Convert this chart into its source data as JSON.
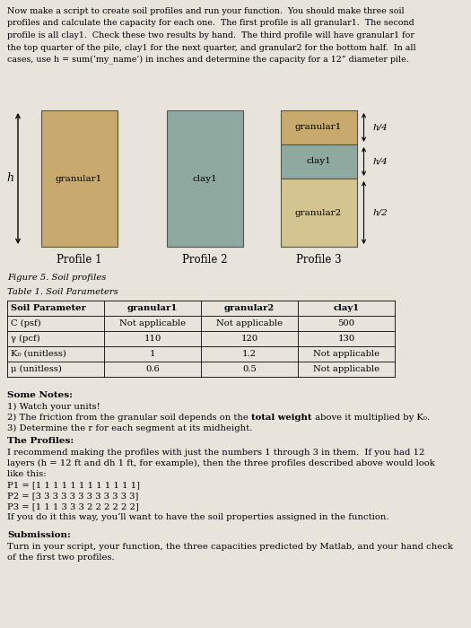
{
  "top_text_lines": [
    "Now make a script to create soil profiles and run your function.  You should make three soil",
    "profiles and calculate the capacity for each one.  The first profile is all granular1.  The second",
    "profile is all clay1.  Check these two results by hand.  The third profile will have granular1 for",
    "the top quarter of the pile, clay1 for the next quarter, and granular2 for the bottom half.  In all",
    "cases, use h = sum(‘my_name’) in inches and determine the capacity for a 12” diameter pile."
  ],
  "profile_labels": [
    "Profile 1",
    "Profile 2",
    "Profile 3"
  ],
  "figure_caption": "Figure 5. Soil profiles",
  "table_title": "Table 1. Soil Parameters",
  "table_headers": [
    "Soil Parameter",
    "granular1",
    "granular2",
    "clay1"
  ],
  "table_rows": [
    [
      "C (psf)",
      "Not applicable",
      "Not applicable",
      "500"
    ],
    [
      "γ (pcf)",
      "110",
      "120",
      "130"
    ],
    [
      "K₀ (unitless)",
      "1",
      "1.2",
      "Not applicable"
    ],
    [
      "μ (unitless)",
      "0.6",
      "0.5",
      "Not applicable"
    ]
  ],
  "notes_title": "Some Notes:",
  "notes_lines": [
    "1) Watch your units!",
    "2) The friction from the granular soil depends on the ",
    "total weight",
    " above it multiplied by K₀.",
    "3) Determine the r for each segment at its midheight."
  ],
  "profiles_title": "The Profiles:",
  "profiles_lines": [
    "I recommend making the profiles with just the numbers 1 through 3 in them.  If you had 12",
    "layers (h = 12 ft and dh 1 ft, for example), then the three profiles described above would look",
    "like this:",
    "P1 = [1 1 1 1 1 1 1 1 1 1 1 1]",
    "P2 = [3 3 3 3 3 3 3 3 3 3 3 3]",
    "P3 = [1 1 1 3 3 3 2 2 2 2 2 2]",
    "If you do it this way, you’ll want to have the soil properties assigned in the function."
  ],
  "submission_title": "Submission:",
  "submission_lines": [
    "Turn in your script, your function, the three capacities predicted by Matlab, and your hand check",
    "of the first two profiles."
  ],
  "granular1_color": "#C8A96E",
  "granular2_color": "#D4C490",
  "clay1_color": "#8FA8A0",
  "background_color": "#E8E4DC"
}
